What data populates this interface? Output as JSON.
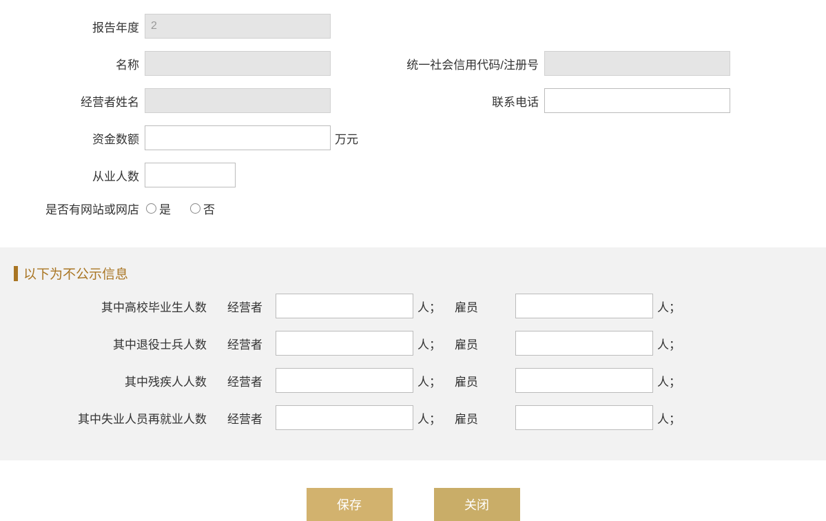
{
  "topForm": {
    "reportYear": {
      "label": "报告年度",
      "value": "2"
    },
    "name": {
      "label": "名称",
      "value": ""
    },
    "creditCode": {
      "label": "统一社会信用代码/注册号",
      "value": ""
    },
    "operatorName": {
      "label": "经营者姓名",
      "value": ""
    },
    "phone": {
      "label": "联系电话",
      "value": ""
    },
    "capital": {
      "label": "资金数额",
      "value": "",
      "unit": "万元"
    },
    "employeeCount": {
      "label": "从业人数",
      "value": ""
    },
    "hasWebsite": {
      "label": "是否有网站或网店",
      "yes": "是",
      "no": "否"
    }
  },
  "nonPublic": {
    "title": "以下为不公示信息",
    "rows": [
      {
        "label": "其中高校毕业生人数",
        "subA": "经营者",
        "valA": "",
        "unitA": "人；",
        "subB": "雇员",
        "valB": "",
        "unitB": "人；"
      },
      {
        "label": "其中退役士兵人数",
        "subA": "经营者",
        "valA": "",
        "unitA": "人；",
        "subB": "雇员",
        "valB": "",
        "unitB": "人；"
      },
      {
        "label": "其中残疾人人数",
        "subA": "经营者",
        "valA": "",
        "unitA": "人；",
        "subB": "雇员",
        "valB": "",
        "unitB": "人；"
      },
      {
        "label": "其中失业人员再就业人数",
        "subA": "经营者",
        "valA": "",
        "unitA": "人；",
        "subB": "雇员",
        "valB": "",
        "unitB": "人；"
      }
    ]
  },
  "buttons": {
    "save": "保存",
    "close": "关闭"
  }
}
